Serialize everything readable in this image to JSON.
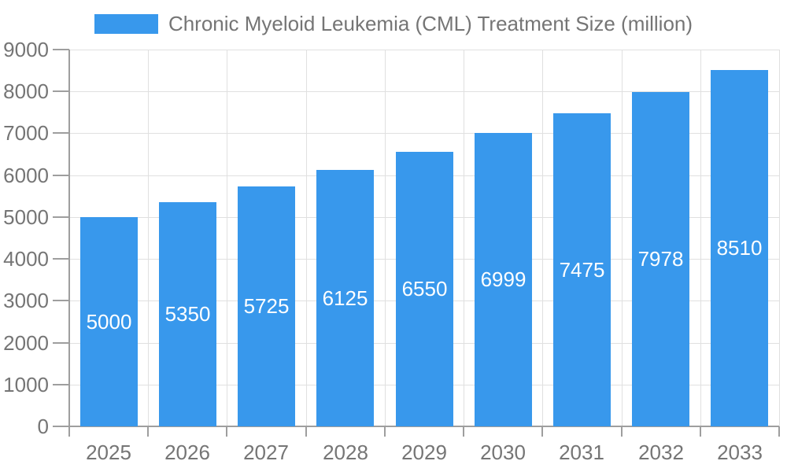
{
  "chart_data": {
    "type": "bar",
    "title": "Chronic Myeloid Leukemia (CML) Treatment Size (million)",
    "categories": [
      "2025",
      "2026",
      "2027",
      "2028",
      "2029",
      "2030",
      "2031",
      "2032",
      "2033"
    ],
    "values": [
      5000,
      5350,
      5725,
      6125,
      6550,
      6999,
      7475,
      7978,
      8510
    ],
    "xlabel": "",
    "ylabel": "",
    "ylim": [
      0,
      9000
    ],
    "ytick_step": 1000,
    "ytick_labels": [
      "0",
      "1000",
      "2000",
      "3000",
      "4000",
      "5000",
      "6000",
      "7000",
      "8000",
      "9000"
    ],
    "grid": true,
    "legend_position": "top",
    "value_labels_inside_bars": true,
    "colors": {
      "bar": "#3898EC",
      "bar_value_text": "#FFFFFF",
      "axis_text": "#757575",
      "gridline": "#E0E0E0",
      "axis_line": "#9E9E9E",
      "background": "#FFFFFF"
    }
  }
}
